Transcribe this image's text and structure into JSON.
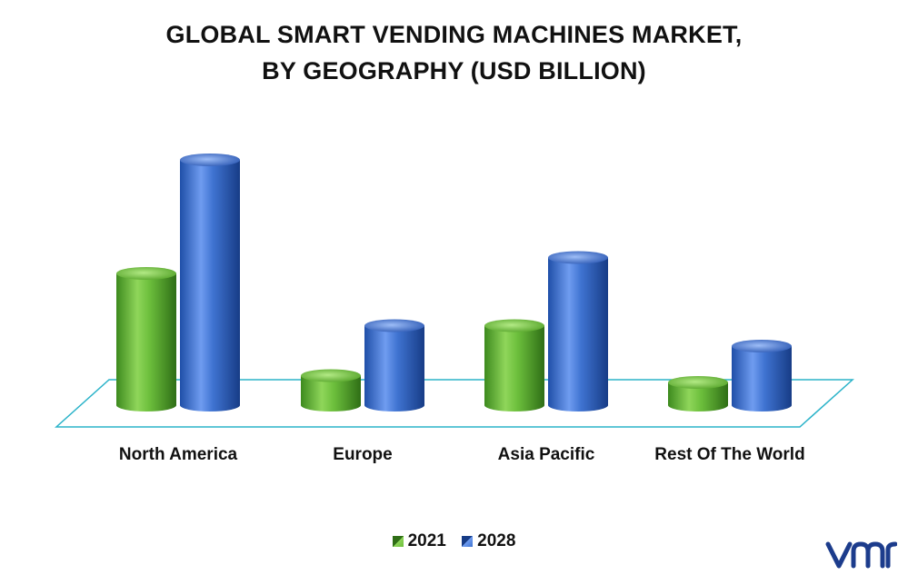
{
  "colors": {
    "series_2021": "#6cbf3c",
    "series_2028": "#3f73d1",
    "floor": "#2bb3c9",
    "logo": "#1c3c8c"
  },
  "chart_data": {
    "type": "bar",
    "title_lines": [
      "GLOBAL SMART VENDING MACHINES MARKET,",
      "BY GEOGRAPHY (USD BILLION)"
    ],
    "categories": [
      "North America",
      "Europe",
      "Asia Pacific",
      "Rest Of The World"
    ],
    "series": [
      {
        "name": "2021",
        "values": [
          5.8,
          1.3,
          3.5,
          1.0
        ]
      },
      {
        "name": "2028",
        "values": [
          10.8,
          3.5,
          6.5,
          2.6
        ]
      }
    ],
    "ylim": [
      0,
      11
    ],
    "legend_position": "bottom",
    "grid": false
  },
  "legend": [
    {
      "label": "2021",
      "color": "#6cbf3c"
    },
    {
      "label": "2028",
      "color": "#3f73d1"
    }
  ],
  "logo_icon": "vmr-logo"
}
